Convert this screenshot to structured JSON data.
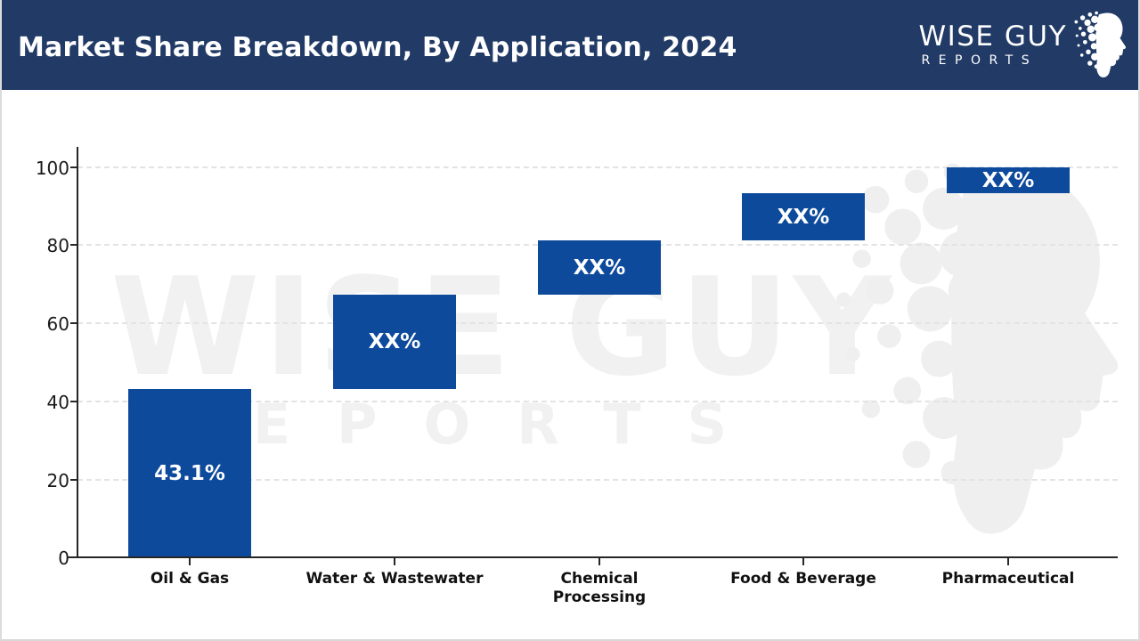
{
  "header": {
    "title": "Market Share Breakdown, By Application, 2024",
    "background_color": "#213a66",
    "logo": {
      "line1": "WISE GUY",
      "line2": "REPORTS"
    }
  },
  "watermark": {
    "line1": "WISE GUY",
    "line2": "REPORTS"
  },
  "chart_data": {
    "type": "bar",
    "subtype": "waterfall",
    "title": "Market Share Breakdown, By Application, 2024",
    "categories": [
      "Oil & Gas",
      "Water & Wastewater",
      "Chemical Processing",
      "Food & Beverage",
      "Pharmaceutical"
    ],
    "segments": [
      {
        "category": "Oil & Gas",
        "label_lines": [
          "Oil & Gas"
        ],
        "start": 0,
        "end": 43.1,
        "label": "43.1%"
      },
      {
        "category": "Water & Wastewater",
        "label_lines": [
          "Water & Wastewater"
        ],
        "start": 43.1,
        "end": 67.3,
        "label": "XX%"
      },
      {
        "category": "Chemical Processing",
        "label_lines": [
          "Chemical",
          "Processing"
        ],
        "start": 67.3,
        "end": 81.2,
        "label": "XX%"
      },
      {
        "category": "Food & Beverage",
        "label_lines": [
          "Food & Beverage"
        ],
        "start": 81.2,
        "end": 93.2,
        "label": "XX%"
      },
      {
        "category": "Pharmaceutical",
        "label_lines": [
          "Pharmaceutical"
        ],
        "start": 93.2,
        "end": 100,
        "label": "XX%"
      }
    ],
    "yticks": [
      0,
      20,
      40,
      60,
      80,
      100
    ],
    "ylim": [
      0,
      105
    ],
    "xlabel": "",
    "ylabel": "",
    "legend": "none",
    "grid": "horizontal-dashed",
    "bar_color": "#0d4a9c",
    "bar_label_color": "#ffffff",
    "axis_color": "#262626",
    "gridline_color": "#e3e3e3"
  }
}
